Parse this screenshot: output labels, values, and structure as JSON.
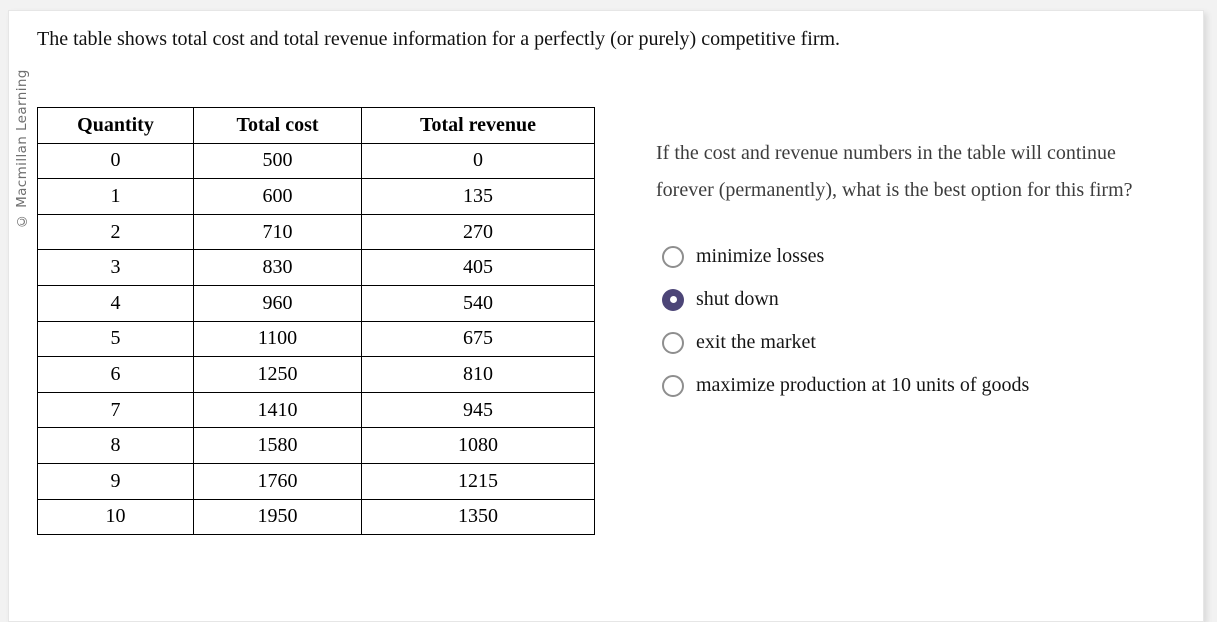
{
  "page": {
    "watermark": "© Macmillan Learning",
    "prompt": "The table shows total cost and total revenue information for a perfectly (or purely) competitive firm."
  },
  "table": {
    "headers": [
      "Quantity",
      "Total cost",
      "Total revenue"
    ],
    "rows": [
      [
        "0",
        "500",
        "0"
      ],
      [
        "1",
        "600",
        "135"
      ],
      [
        "2",
        "710",
        "270"
      ],
      [
        "3",
        "830",
        "405"
      ],
      [
        "4",
        "960",
        "540"
      ],
      [
        "5",
        "1100",
        "675"
      ],
      [
        "6",
        "1250",
        "810"
      ],
      [
        "7",
        "1410",
        "945"
      ],
      [
        "8",
        "1580",
        "1080"
      ],
      [
        "9",
        "1760",
        "1215"
      ],
      [
        "10",
        "1950",
        "1350"
      ]
    ]
  },
  "question": {
    "text": "If the cost and revenue numbers in the table will continue forever (permanently), what is the best option for this firm?",
    "options": [
      {
        "label": "minimize losses",
        "selected": false
      },
      {
        "label": "shut down",
        "selected": true
      },
      {
        "label": "exit the market",
        "selected": false
      },
      {
        "label": "maximize production at 10 units of goods",
        "selected": false
      }
    ]
  },
  "colors": {
    "radio_selected": "#4c4577",
    "radio_unselected_border": "#8e8e8e",
    "card_background": "#ffffff",
    "page_background": "#f2f2f2",
    "question_text": "#3d3d3d"
  }
}
